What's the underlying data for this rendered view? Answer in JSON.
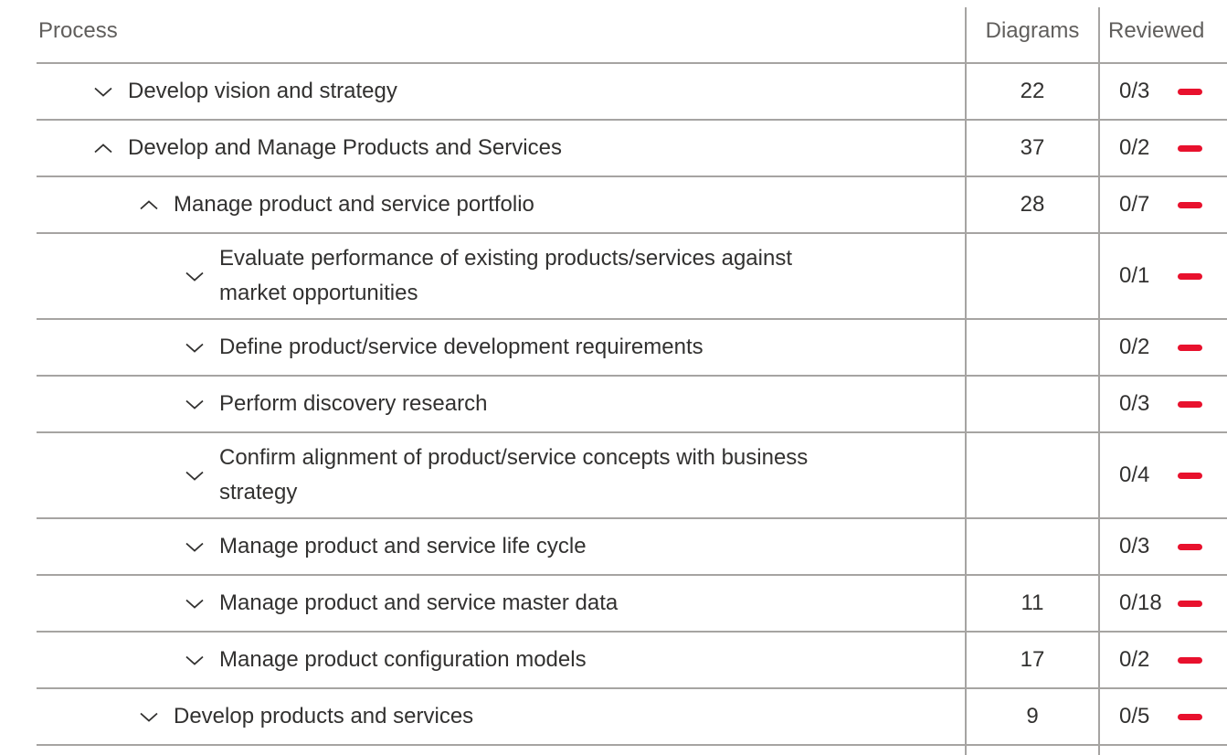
{
  "table": {
    "columns": [
      {
        "label": "Process"
      },
      {
        "label": "Diagrams"
      },
      {
        "label": "Reviewed"
      }
    ],
    "rows": [
      {
        "process": "Develop vision and strategy",
        "level": 1,
        "expanded": false,
        "diagrams": "22",
        "reviewed": "0/3"
      },
      {
        "process": "Develop and Manage Products and Services",
        "level": 1,
        "expanded": true,
        "diagrams": "37",
        "reviewed": "0/2"
      },
      {
        "process": "Manage product and service portfolio",
        "level": 2,
        "expanded": true,
        "diagrams": "28",
        "reviewed": "0/7"
      },
      {
        "process": "Evaluate performance of existing products/services against\nmarket opportunities",
        "level": 3,
        "expanded": false,
        "diagrams": "",
        "reviewed": "0/1"
      },
      {
        "process": "Define product/service development requirements",
        "level": 3,
        "expanded": false,
        "diagrams": "",
        "reviewed": "0/2"
      },
      {
        "process": "Perform discovery research",
        "level": 3,
        "expanded": false,
        "diagrams": "",
        "reviewed": "0/3"
      },
      {
        "process": "Confirm alignment of product/service concepts with business\nstrategy",
        "level": 3,
        "expanded": false,
        "diagrams": "",
        "reviewed": "0/4"
      },
      {
        "process": "Manage product and service life cycle",
        "level": 3,
        "expanded": false,
        "diagrams": "",
        "reviewed": "0/3"
      },
      {
        "process": "Manage product and service master data",
        "level": 3,
        "expanded": false,
        "diagrams": "11",
        "reviewed": "0/18"
      },
      {
        "process": "Manage product configuration models",
        "level": 3,
        "expanded": false,
        "diagrams": "17",
        "reviewed": "0/2"
      },
      {
        "process": "Develop products and services",
        "level": 2,
        "expanded": false,
        "diagrams": "9",
        "reviewed": "0/5"
      }
    ],
    "status_icon": "red-minus",
    "colors": {
      "status_red": "#e8112d",
      "border_gray": "#a6a4a2",
      "header_text": "#605e5c",
      "body_text": "#323130"
    }
  }
}
